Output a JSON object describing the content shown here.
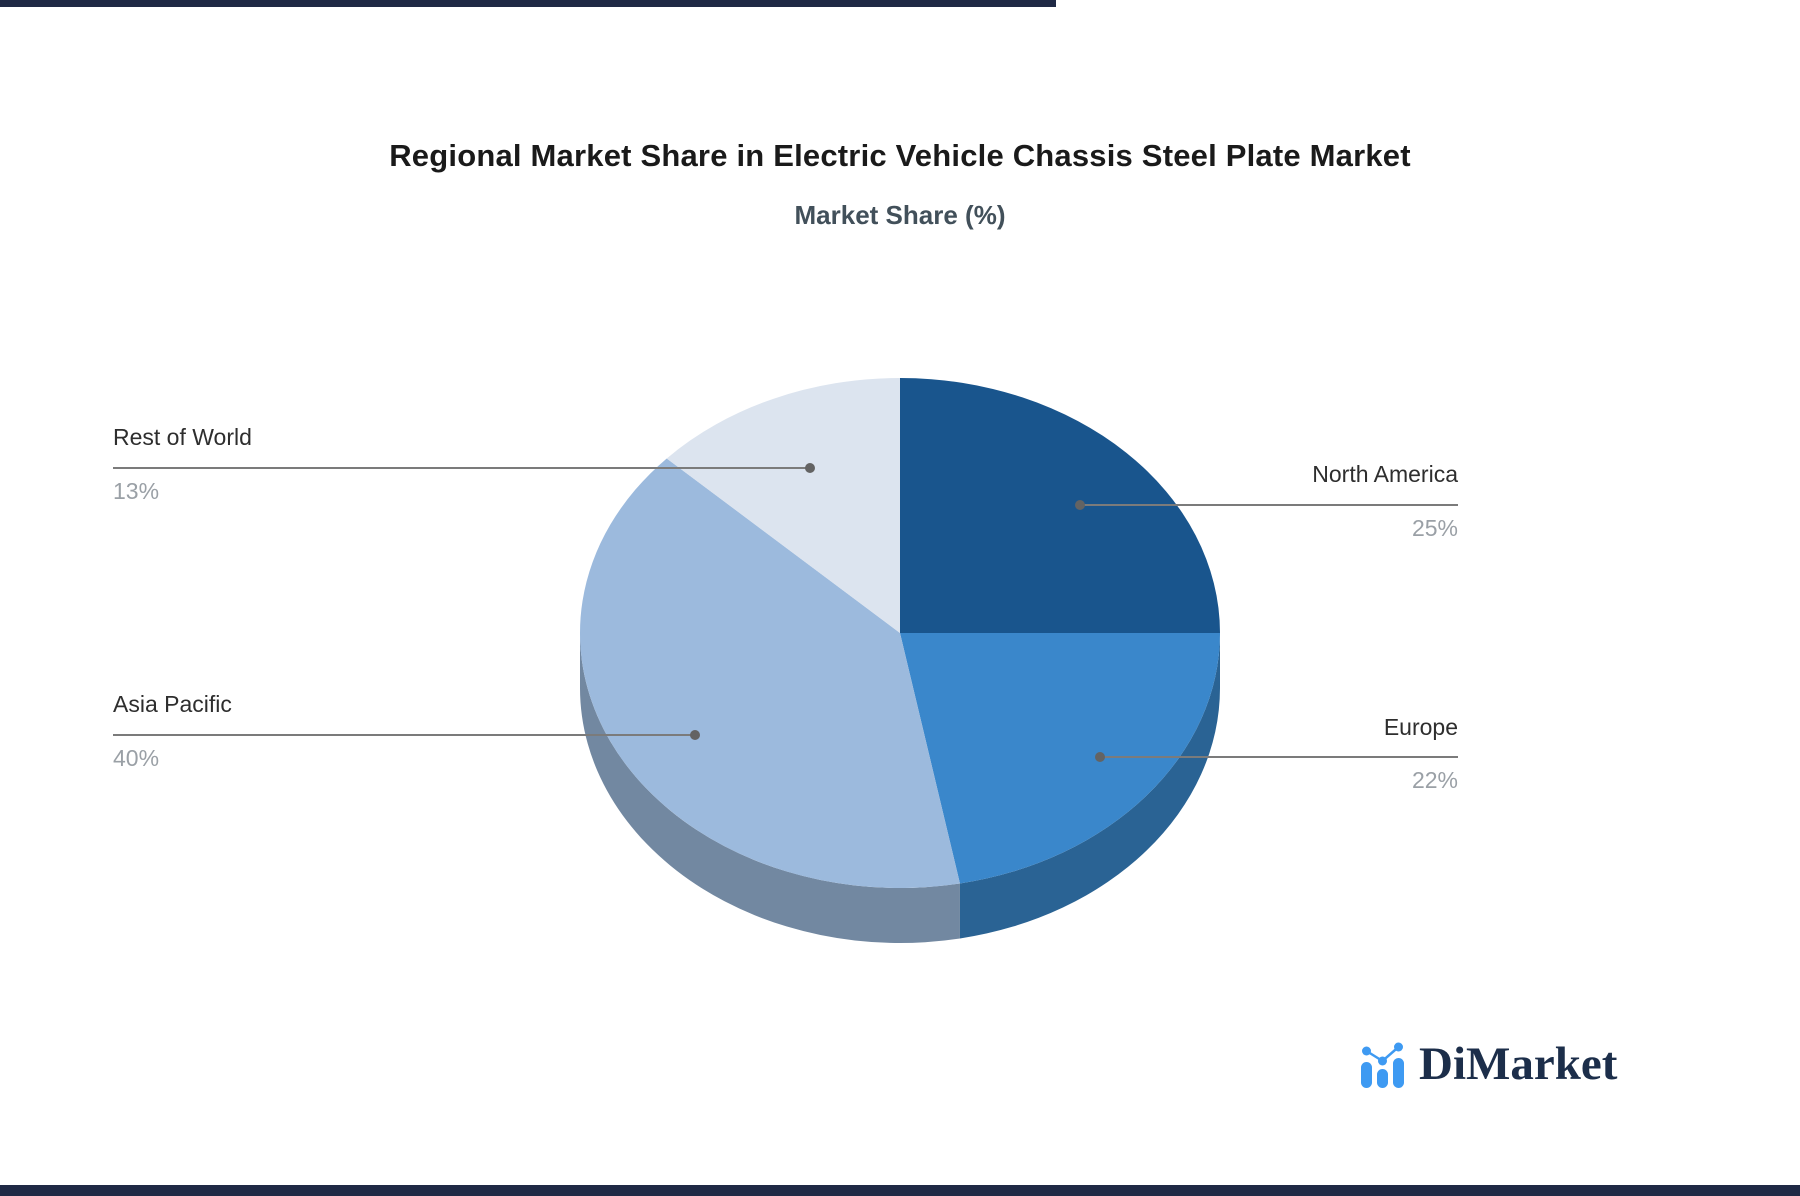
{
  "page": {
    "background": "#ffffff",
    "top_bar_color": "#1f2945",
    "bottom_bar_color": "#1f2945"
  },
  "header": {
    "title": "Regional Market Share in Electric Vehicle Chassis Steel Plate Market",
    "subtitle": "Market Share (%)"
  },
  "chart_data": {
    "type": "pie",
    "style": "3d",
    "title": "Regional Market Share in Electric Vehicle Chassis Steel Plate Market",
    "subtitle": "Market Share (%)",
    "unit": "%",
    "direction": "clockwise",
    "start_angle_deg": 0,
    "labels": [
      "North America",
      "Europe",
      "Asia Pacific",
      "Rest of World"
    ],
    "values": [
      25,
      22,
      40,
      13
    ],
    "colors": [
      "#19558D",
      "#3A87CB",
      "#9CBADD",
      "#DCE4EF"
    ],
    "legend_position": "none-callout-labels"
  },
  "callouts": [
    {
      "label": "North America",
      "value_text": "25%",
      "side": "right"
    },
    {
      "label": "Europe",
      "value_text": "22%",
      "side": "right"
    },
    {
      "label": "Asia Pacific",
      "value_text": "40%",
      "side": "left"
    },
    {
      "label": "Rest of World",
      "value_text": "13%",
      "side": "left"
    }
  ],
  "branding": {
    "logo_text": "DiMarket",
    "logo_icon": "bar-line-chart-icon",
    "text_color": "#1c2e4a",
    "icon_color": "#3E9AF2"
  },
  "style": {
    "label_color": "#2e2e2e",
    "value_color": "#9aa0a6",
    "leader_line_color": "#7b7b7b",
    "leader_dot_color": "#636363"
  }
}
